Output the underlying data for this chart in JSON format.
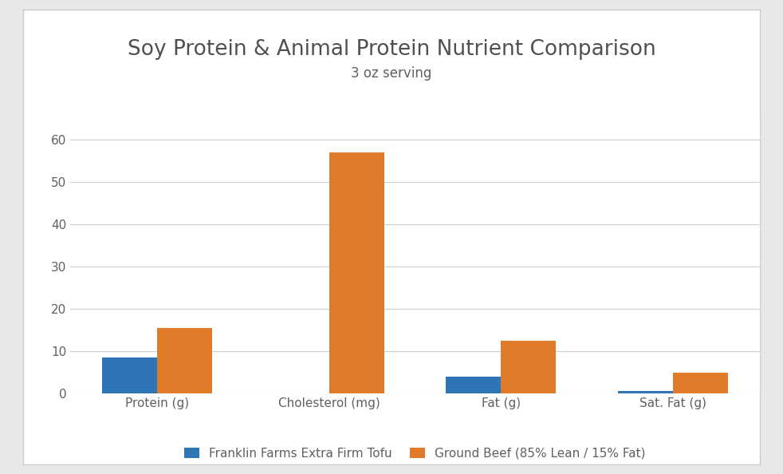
{
  "title": "Soy Protein & Animal Protein Nutrient Comparison",
  "subtitle": "3 oz serving",
  "categories": [
    "Protein (g)",
    "Cholesterol (mg)",
    "Fat (g)",
    "Sat. Fat (g)"
  ],
  "series": [
    {
      "name": "Franklin Farms Extra Firm Tofu",
      "values": [
        8.5,
        0,
        4.0,
        0.5
      ],
      "color": "#2E75B6"
    },
    {
      "name": "Ground Beef (85% Lean / 15% Fat)",
      "values": [
        15.5,
        57,
        12.5,
        5.0
      ],
      "color": "#E07B2A"
    }
  ],
  "ylim": [
    0,
    65
  ],
  "yticks": [
    0,
    10,
    20,
    30,
    40,
    50,
    60
  ],
  "plot_bg": "#FFFFFF",
  "fig_bg": "#E8E8E8",
  "box_bg": "#FFFFFF",
  "grid_color": "#D0D0D0",
  "title_color": "#505050",
  "subtitle_color": "#606060",
  "tick_color": "#606060",
  "title_fontsize": 19,
  "subtitle_fontsize": 12,
  "tick_fontsize": 11,
  "legend_fontsize": 11,
  "bar_width": 0.32
}
